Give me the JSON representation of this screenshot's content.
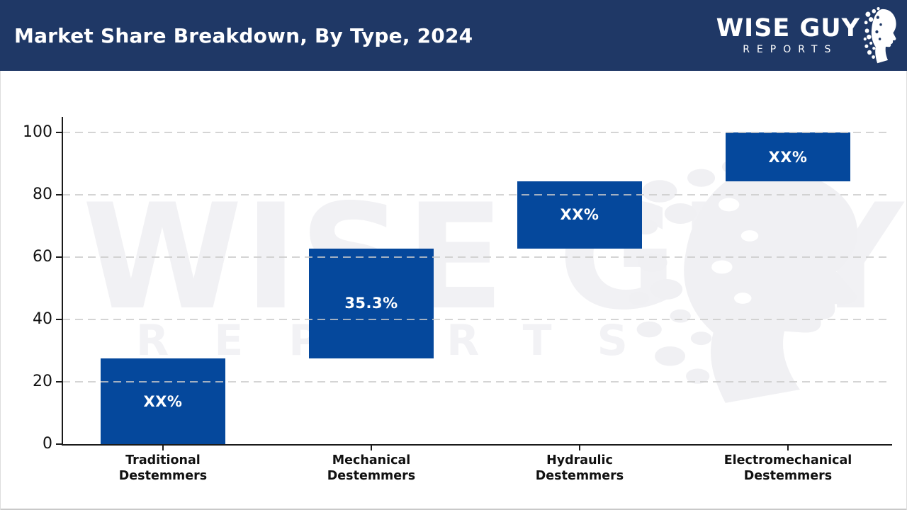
{
  "header": {
    "title": "Market Share Breakdown, By Type, 2024",
    "logo": {
      "line1": "WISE GUY",
      "line2": "REPORTS"
    }
  },
  "watermark": {
    "line1": "WISE GUY",
    "line2": "REPORTS"
  },
  "colors": {
    "header_bg": "#1f3866",
    "bar": "#05489c",
    "bar_label": "#ffffff",
    "axis": "#1a1a1a",
    "grid_rgba": "rgba(202,202,202,0.8)",
    "watermark": "#f0f0f3"
  },
  "chart_data": {
    "type": "bar",
    "subtype": "waterfall",
    "title": "Market Share Breakdown, By Type, 2024",
    "xlabel": "",
    "ylabel": "",
    "ylim": [
      0,
      100
    ],
    "yticks": [
      "0",
      "20",
      "40",
      "60",
      "80",
      "100"
    ],
    "grid": "horizontal dashed, drawn over bars",
    "legend": "none",
    "categories": [
      "Traditional Destemmers",
      "Mechanical Destemmers",
      "Hydraulic Destemmers",
      "Electromechanical Destemmers"
    ],
    "bars": [
      {
        "category": "Traditional Destemmers",
        "base": 0,
        "top": 27.5,
        "label": "XX%"
      },
      {
        "category": "Mechanical Destemmers",
        "base": 27.5,
        "top": 62.8,
        "label": "35.3%"
      },
      {
        "category": "Hydraulic Destemmers",
        "base": 62.8,
        "top": 84.3,
        "label": "XX%"
      },
      {
        "category": "Electromechanical Destemmers",
        "base": 84.3,
        "top": 100,
        "label": "XX%"
      }
    ]
  }
}
